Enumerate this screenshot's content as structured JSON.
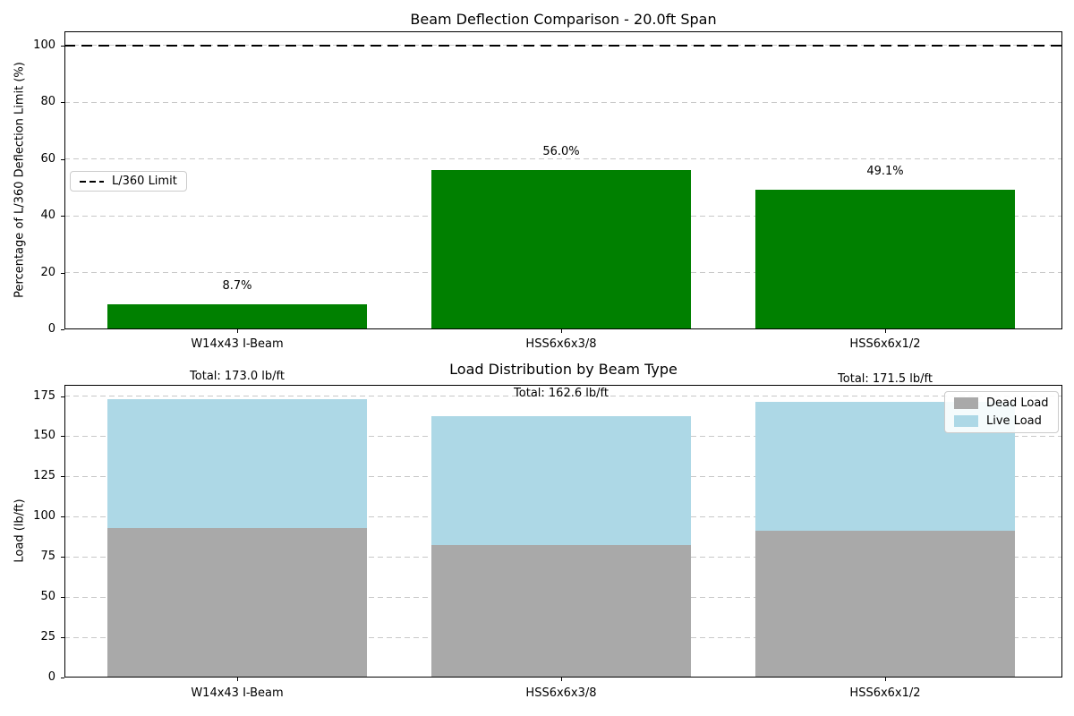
{
  "figure": {
    "background": "#ffffff"
  },
  "chart_data": [
    {
      "type": "bar",
      "title": "Beam Deflection Comparison - 20.0ft Span",
      "ylabel": "Percentage of L/360 Deflection Limit (%)",
      "xlabel": "",
      "categories": [
        "W14x43 I-Beam",
        "HSS6x6x3/8",
        "HSS6x6x1/2"
      ],
      "values": [
        8.7,
        56.0,
        49.1
      ],
      "bar_labels": [
        "8.7%",
        "56.0%",
        "49.1%"
      ],
      "bar_color": "#008000",
      "ylim": [
        0,
        105
      ],
      "yticks": [
        0,
        20,
        40,
        60,
        80,
        100
      ],
      "grid": true,
      "grid_color": "#c8c8c8",
      "limit_line": {
        "value": 100,
        "label": "L/360 Limit",
        "color": "#000000",
        "style": "dashed"
      },
      "legend": {
        "position": "center-left",
        "entries": [
          {
            "label": "L/360 Limit",
            "marker": "dashed-line",
            "color": "#000000"
          }
        ]
      }
    },
    {
      "type": "stacked-bar",
      "title": "Load Distribution by Beam Type",
      "ylabel": "Load (lb/ft)",
      "xlabel": "",
      "categories": [
        "W14x43 I-Beam",
        "HSS6x6x3/8",
        "HSS6x6x1/2"
      ],
      "series": [
        {
          "name": "Dead Load",
          "color": "#a9a9a9",
          "values": [
            93.0,
            82.6,
            91.5
          ]
        },
        {
          "name": "Live Load",
          "color": "#add8e6",
          "values": [
            80.0,
            80.0,
            80.0
          ]
        }
      ],
      "totals": [
        173.0,
        162.6,
        171.5
      ],
      "total_labels": [
        "Total: 173.0 lb/ft",
        "Total: 162.6 lb/ft",
        "Total: 171.5 lb/ft"
      ],
      "ylim": [
        0,
        182
      ],
      "yticks": [
        0,
        25,
        50,
        75,
        100,
        125,
        150,
        175
      ],
      "grid": true,
      "grid_color": "#c8c8c8",
      "legend": {
        "position": "upper-right",
        "entries": [
          {
            "label": "Dead Load",
            "color": "#a9a9a9"
          },
          {
            "label": "Live Load",
            "color": "#add8e6"
          }
        ]
      }
    }
  ]
}
